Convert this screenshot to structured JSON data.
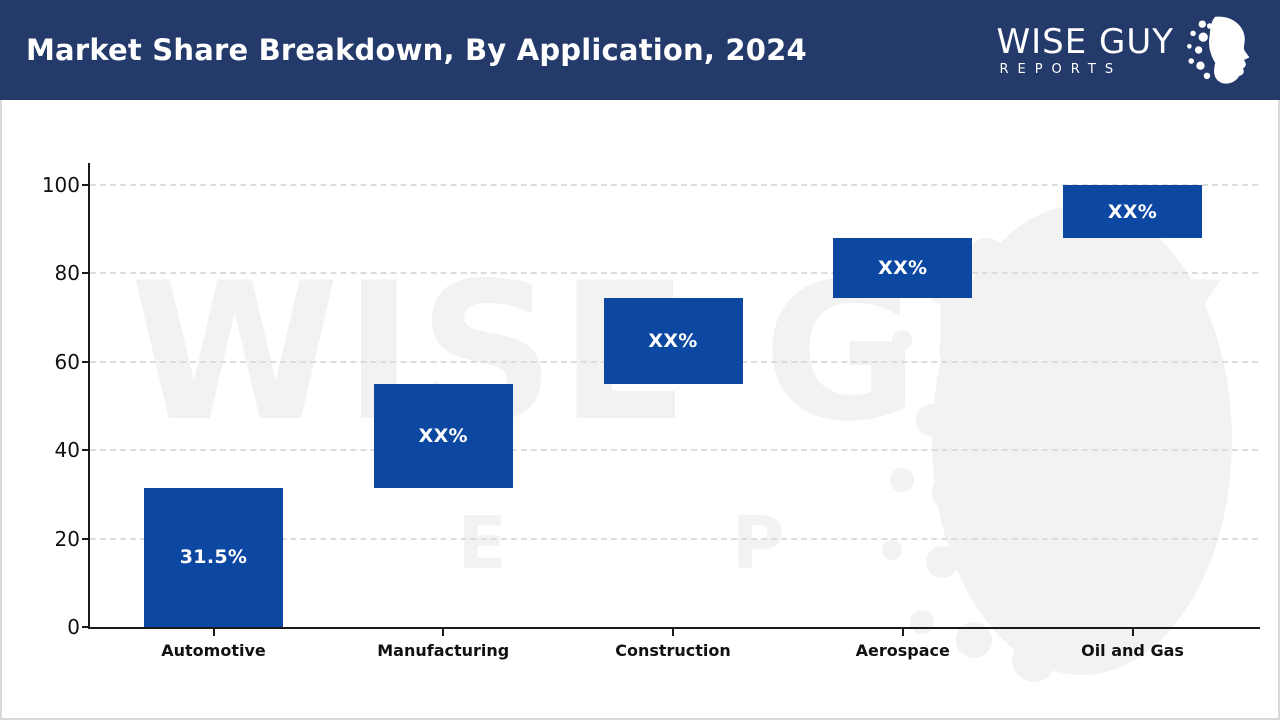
{
  "header": {
    "title": "Market Share Breakdown, By Application, 2024",
    "logo": {
      "line1": "WISE GUY",
      "line2": "REPORTS"
    }
  },
  "watermark": {
    "line1": "WISE GUY",
    "line2": "R E P O R T S"
  },
  "colors": {
    "header_bg": "#233a6b",
    "bar": "#0c47a1",
    "bar_label": "#ffffff",
    "axis": "#1a1a1a",
    "grid": "#dcdcdc",
    "watermark": "#f2f2f2"
  },
  "chart_data": {
    "type": "bar",
    "variant": "floating-waterfall",
    "title": "Market Share Breakdown, By Application, 2024",
    "categories": [
      "Automotive",
      "Manufacturing",
      "Construction",
      "Aerospace",
      "Oil and Gas"
    ],
    "segments": [
      {
        "category": "Automotive",
        "start": 0,
        "end": 31.5,
        "label": "31.5%"
      },
      {
        "category": "Manufacturing",
        "start": 31.5,
        "end": 55,
        "label": "XX%"
      },
      {
        "category": "Construction",
        "start": 55,
        "end": 74.5,
        "label": "XX%"
      },
      {
        "category": "Aerospace",
        "start": 74.5,
        "end": 88,
        "label": "XX%"
      },
      {
        "category": "Oil and Gas",
        "start": 88,
        "end": 100,
        "label": "XX%"
      }
    ],
    "yticks": [
      0,
      20,
      40,
      60,
      80,
      100
    ],
    "ylim": [
      0,
      105
    ],
    "xlabel": "",
    "ylabel": "",
    "grid": "horizontal-dashed",
    "legend": "none",
    "bar_color": "#0c47a1",
    "value_label_color": "#ffffff"
  }
}
